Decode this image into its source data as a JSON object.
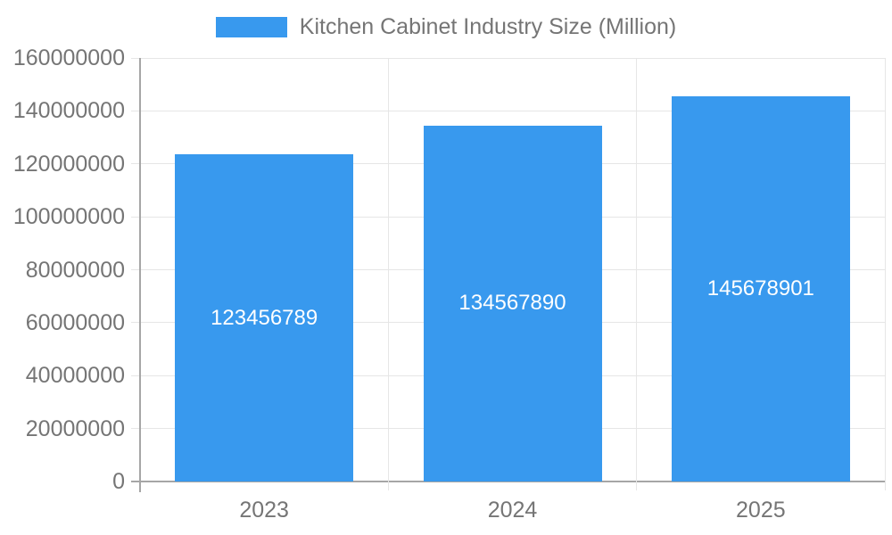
{
  "chart_data": {
    "type": "bar",
    "title": "Kitchen Cabinet Industry Size (Million)",
    "legend": {
      "position": "top",
      "label": "Kitchen Cabinet Industry Size (Million)"
    },
    "categories": [
      "2023",
      "2024",
      "2025"
    ],
    "series": [
      {
        "name": "Kitchen Cabinet Industry Size (Million)",
        "values": [
          123456789,
          134567890,
          145678901
        ]
      }
    ],
    "value_labels": [
      "123456789",
      "134567890",
      "145678901"
    ],
    "xlabel": "",
    "ylabel": "",
    "ylim": [
      0,
      160000000
    ],
    "yticks": [
      0,
      20000000,
      40000000,
      60000000,
      80000000,
      100000000,
      120000000,
      140000000,
      160000000
    ],
    "ytick_labels": [
      "0",
      "20000000",
      "40000000",
      "60000000",
      "80000000",
      "100000000",
      "120000000",
      "140000000",
      "160000000"
    ],
    "grid": true,
    "colors": {
      "bar": "#3899EE",
      "grid": "#E6E6E6",
      "axis": "#A6A6A6",
      "text": "#757575",
      "value_label": "#FFFFFF",
      "background": "#FFFFFF"
    }
  }
}
